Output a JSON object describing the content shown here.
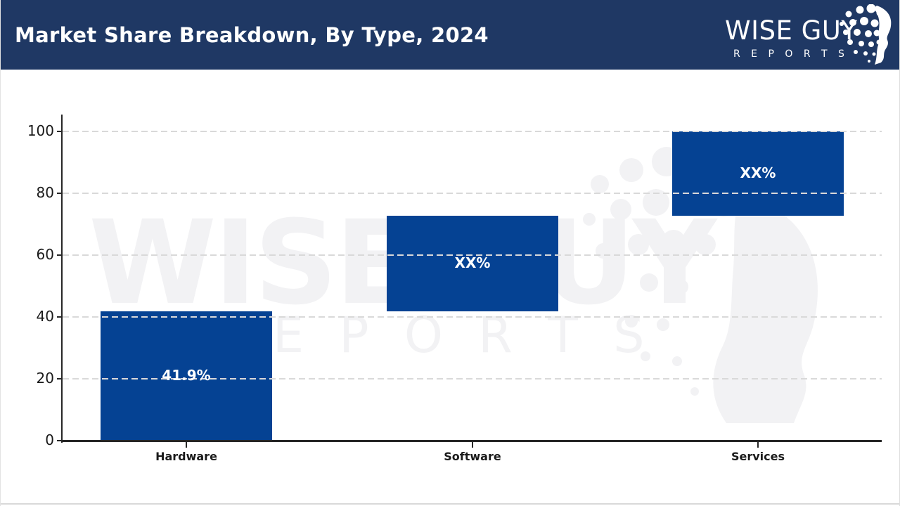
{
  "header": {
    "title": "Market Share Breakdown, By Type, 2024",
    "logo": {
      "name": "WISE GUY",
      "subtitle": "R E P O R T S"
    }
  },
  "watermark": {
    "line1": "WISE GUY",
    "line2": "R E P O R T S"
  },
  "colors": {
    "header_bg": "#1f3864",
    "bar": "#054293",
    "grid": "#d9d9d9",
    "axis": "#262626",
    "bar_label": "#ffffff",
    "watermark": "#f2f2f4"
  },
  "chart_data": {
    "type": "bar",
    "subtype": "waterfall",
    "title": "Market Share Breakdown, By Type, 2024",
    "categories": [
      "Hardware",
      "Software",
      "Services"
    ],
    "segments": [
      {
        "category": "Hardware",
        "start": 0,
        "end": 41.9,
        "label": "41.9%"
      },
      {
        "category": "Software",
        "start": 41.9,
        "end": 72.7,
        "label": "XX%"
      },
      {
        "category": "Services",
        "start": 72.7,
        "end": 100,
        "label": "XX%"
      }
    ],
    "xlabel": "",
    "ylabel": "",
    "ylim": [
      0,
      100
    ],
    "yticks": [
      0,
      20,
      40,
      60,
      80,
      100
    ],
    "grid": "horizontal-dashed-over-bars",
    "legend": "none",
    "bar_color": "#054293",
    "label_color": "#ffffff"
  }
}
